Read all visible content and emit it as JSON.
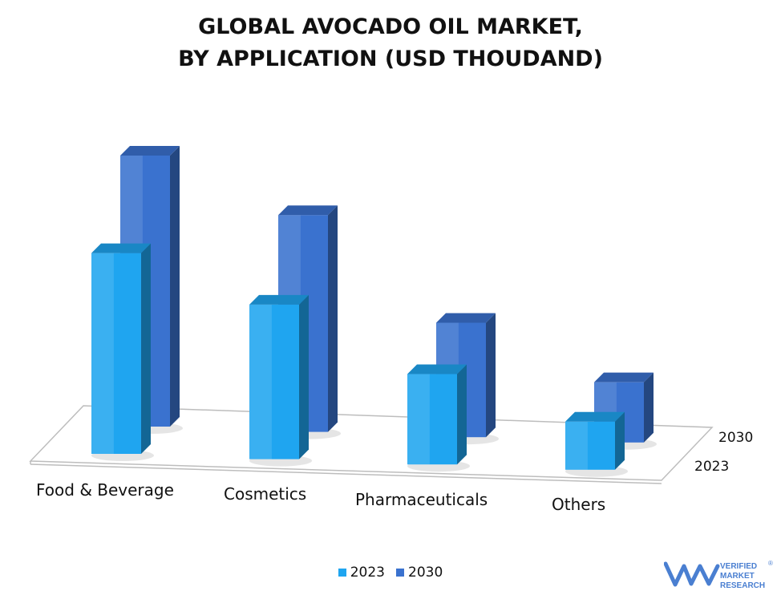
{
  "title_lines": [
    "GLOBAL AVOCADO OIL MARKET,",
    "BY APPLICATION (USD THOUDAND)"
  ],
  "brand": {
    "word1": "VERIFIED",
    "word2": "MARKET",
    "word3": "RESEARCH",
    "mark": "®"
  },
  "chart_data": {
    "type": "bar",
    "variant": "3d-clustered",
    "title": "GLOBAL AVOCADO OIL MARKET, BY APPLICATION (USD THOUDAND)",
    "categories": [
      "Food & Beverage",
      "Cosmetics",
      "Pharmaceuticals",
      "Others"
    ],
    "series": [
      {
        "name": "2023",
        "values": [
          100,
          77,
          45,
          24
        ],
        "color": "#1fa5f0"
      },
      {
        "name": "2030",
        "values": [
          135,
          108,
          57,
          30
        ],
        "color": "#3a72cf"
      }
    ],
    "value_axis_shown": false,
    "grid": false,
    "legend_position": "bottom"
  }
}
